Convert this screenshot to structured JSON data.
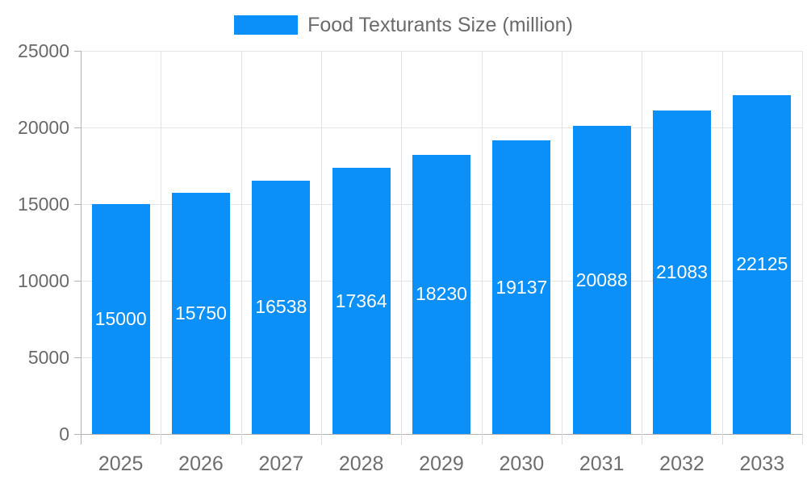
{
  "legend": {
    "label": "Food Texturants Size (million)"
  },
  "colors": {
    "bar_fill": "#0a90f8",
    "bar_label": "#ffffff",
    "gridline": "#e5e5e5",
    "axis_line": "#b3b3b3",
    "tick_label": "#696969",
    "legend_text": "#6b6b6b",
    "background": "#ffffff"
  },
  "chart_data": {
    "type": "bar",
    "title": "",
    "xlabel": "",
    "ylabel": "",
    "series_name": "Food Texturants Size (million)",
    "categories": [
      "2025",
      "2026",
      "2027",
      "2028",
      "2029",
      "2030",
      "2031",
      "2032",
      "2033"
    ],
    "values": [
      15000,
      15750,
      16538,
      17364,
      18230,
      19137,
      20088,
      21083,
      22125
    ],
    "bar_value_labels": [
      "15000",
      "15750",
      "16538",
      "17364",
      "18230",
      "19137",
      "20088",
      "21083",
      "22125"
    ],
    "ylim": [
      0,
      25000
    ],
    "yticks": [
      0,
      5000,
      10000,
      15000,
      20000,
      25000
    ],
    "ytick_labels": [
      "0",
      "5000",
      "10000",
      "15000",
      "20000",
      "25000"
    ],
    "grid": true,
    "legend_position": "top",
    "bar_label_position": "center"
  }
}
